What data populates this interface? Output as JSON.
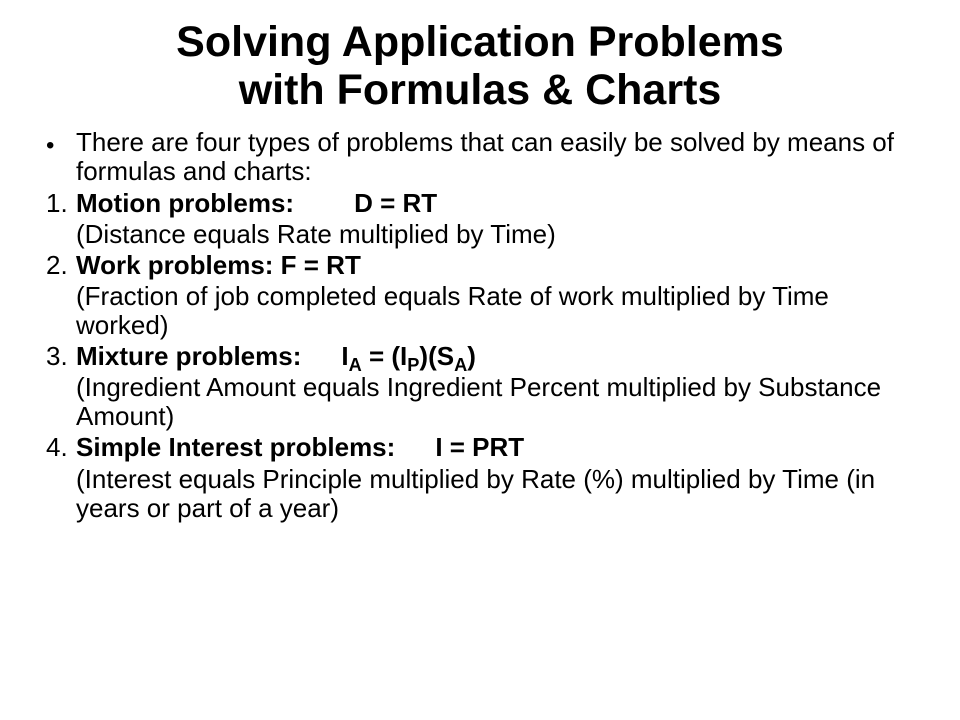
{
  "title_line1": "Solving Application Problems",
  "title_line2": "with Formulas & Charts",
  "intro": "There are four types of problems that can easily be solved by means of formulas and charts:",
  "items": {
    "1": {
      "num": "1.",
      "label": "Motion problems:",
      "formula_pre": "D = RT",
      "explain": "(Distance equals Rate multiplied by Time)"
    },
    "2": {
      "num": "2.",
      "label": "Work problems: ",
      "formula_pre": "F = RT",
      "explain": "(Fraction of job completed equals Rate of work multiplied by Time worked)"
    },
    "3": {
      "num": "3.",
      "label": "Mixture problems:",
      "formula_a": "I",
      "formula_b": "A",
      "formula_c": " = (I",
      "formula_d": "P",
      "formula_e": ")(S",
      "formula_f": "A",
      "formula_g": ")",
      "explain": "(Ingredient Amount equals Ingredient Percent multiplied by Substance Amount)"
    },
    "4": {
      "num": "4.",
      "label": "Simple Interest problems:",
      "formula_pre": "I = PRT",
      "explain": "(Interest equals Principle multiplied by Rate (%) multiplied by Time (in years or part of a  year)"
    }
  },
  "style": {
    "background_color": "#ffffff",
    "text_color": "#000000",
    "font_family": "Arial",
    "title_fontsize": 43,
    "title_fontweight": "bold",
    "body_fontsize": 26,
    "line_height": 1.12
  }
}
